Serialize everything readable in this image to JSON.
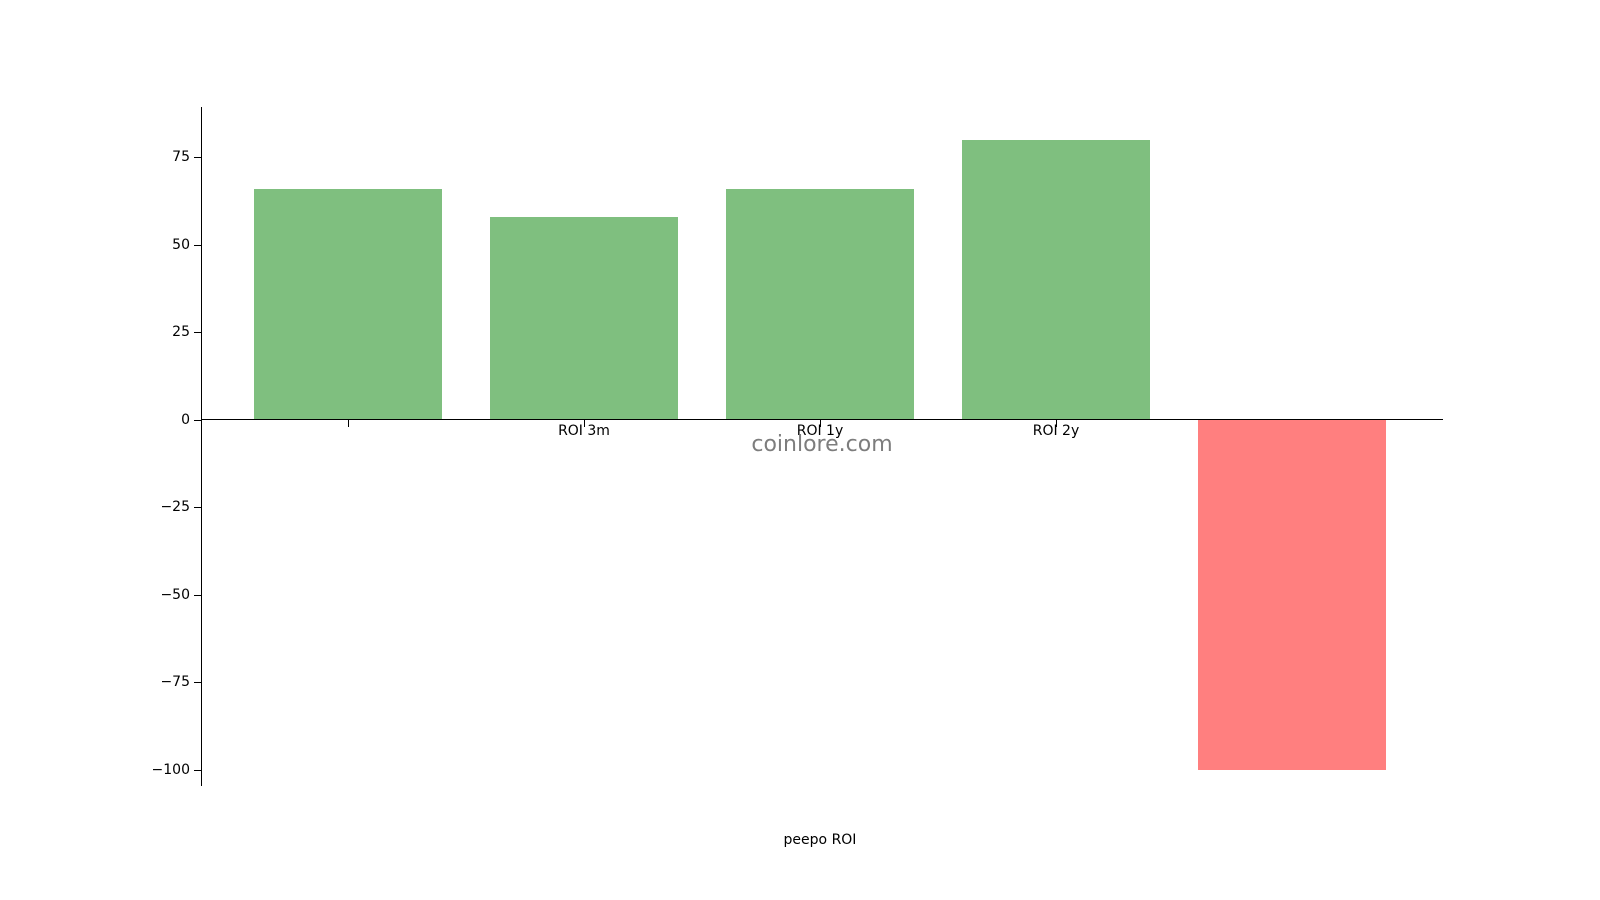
{
  "page": {
    "background": "#ffffff"
  },
  "watermark": {
    "text": "coinlore.com",
    "color": "#7d7d7d"
  },
  "chart_data": {
    "type": "bar",
    "title": "peepo ROI",
    "categories": [
      "",
      "ROI 3m",
      "ROI 1y",
      "ROI 2y",
      ""
    ],
    "values": [
      66,
      58,
      66,
      80,
      -100
    ],
    "bar_colors": [
      "#7fbf7f",
      "#7fbf7f",
      "#7fbf7f",
      "#7fbf7f",
      "#ff7f7f"
    ],
    "positive_color": "#7fbf7f",
    "negative_color": "#ff7f7f",
    "y_ticks": [
      75,
      50,
      25,
      0,
      -25,
      -50,
      -75,
      -100
    ],
    "x_tick_labels_visible": [
      "",
      "ROI 3m",
      "ROI 1y",
      "ROI 2y"
    ],
    "ylim": [
      -105,
      89
    ],
    "grid": false,
    "legend": false,
    "axis_color": "#000000",
    "text_color": "#000000",
    "watermark": "coinlore.com"
  }
}
